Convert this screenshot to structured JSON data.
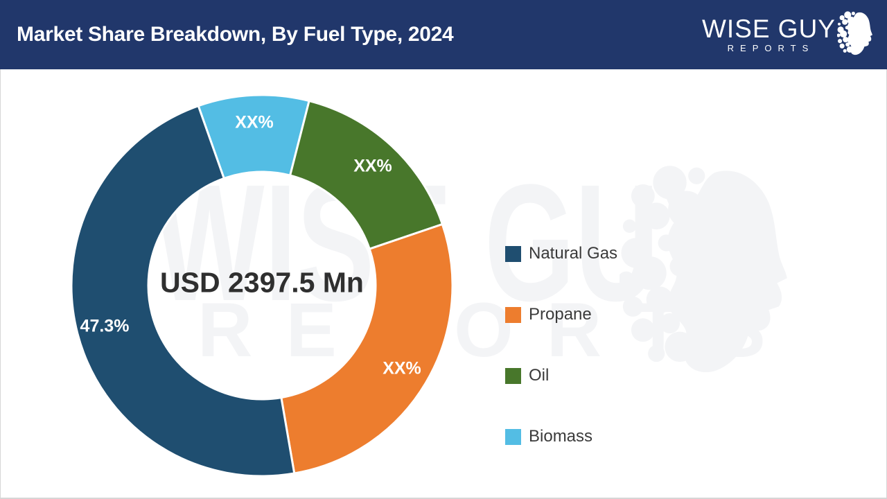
{
  "colors": {
    "header_bg": "#21376B",
    "page_border": "#D6D6D6",
    "watermark": "#F3F4F6",
    "center_text": "#2F2F2F",
    "legend_text": "#3A3A3A",
    "slice_label": "#FFFFFF",
    "natural_gas": "#1F4E70",
    "propane": "#ED7D2E",
    "oil": "#48772B",
    "biomass": "#53BDE4"
  },
  "header": {
    "title": "Market Share Breakdown, By Fuel Type, 2024",
    "logo": {
      "line1": "WISE GUY",
      "line2": "REPORTS"
    }
  },
  "watermark": {
    "line1": "WISE GUY",
    "line2": "REPORTS"
  },
  "chart_data": {
    "type": "pie",
    "subtype": "donut",
    "title": "Market Share Breakdown, By Fuel Type, 2024",
    "center_label": "USD 2397.5 Mn",
    "start_angle_deg": -19.5,
    "inner_radius_ratio": 0.6,
    "legend_position": "right",
    "slices": [
      {
        "label": "Biomass",
        "display": "XX%",
        "percent": 9.4,
        "color": "#53BDE4"
      },
      {
        "label": "Oil",
        "display": "XX%",
        "percent": 15.8,
        "color": "#48772B"
      },
      {
        "label": "Propane",
        "display": "XX%",
        "percent": 27.5,
        "color": "#ED7D2E"
      },
      {
        "label": "Natural Gas",
        "display": "47.3%",
        "percent": 47.3,
        "color": "#1F4E70"
      }
    ],
    "legend": [
      {
        "label": "Natural Gas",
        "color": "#1F4E70"
      },
      {
        "label": "Propane",
        "color": "#ED7D2E"
      },
      {
        "label": "Oil",
        "color": "#48772B"
      },
      {
        "label": "Biomass",
        "color": "#53BDE4"
      }
    ]
  }
}
